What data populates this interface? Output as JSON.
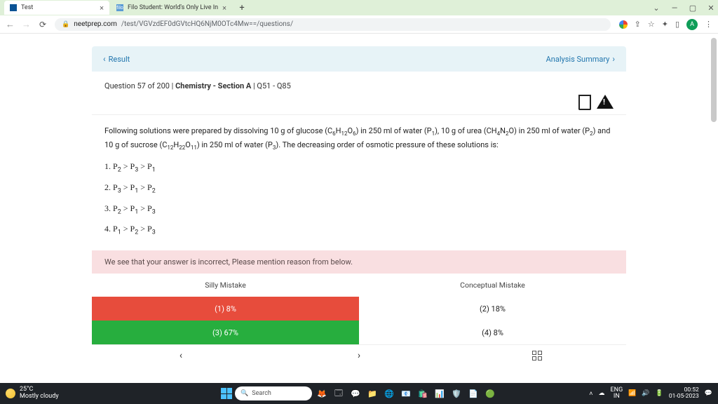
{
  "browser": {
    "tabs": [
      {
        "title": "Test",
        "active": true
      },
      {
        "title": "Filo Student: World's Only Live In",
        "active": false
      }
    ],
    "url_domain": "neetprep.com",
    "url_path": "/test/VGVzdEF0dGVtcHQ6NjM0OTc4Mw==/questions/",
    "win_min": "—",
    "win_max": "▢",
    "win_close": "✕",
    "win_chev": "⌄",
    "avatar_letter": "A"
  },
  "header": {
    "result_label": "Result",
    "analysis_label": "Analysis Summary"
  },
  "question": {
    "meta_prefix": "Question 57 of 200 | ",
    "meta_bold": "Chemistry - Section A",
    "meta_suffix": " | Q51 - Q85",
    "text_html": "Following solutions were prepared by dissolving 10 g of glucose (C<sub>6</sub>H<sub>12</sub>O<sub>6</sub>) in 250 ml of water (P<sub>1</sub>), 10 g of urea (CH<sub>4</sub>N<sub>2</sub>O) in 250 ml of water (P<sub>2</sub>) and 10 g of sucrose (C<sub>12</sub>H<sub>22</sub>O<sub>11</sub>) in 250 ml of water (P<sub>3</sub>). The decreasing order of osmotic pressure of these solutions is:",
    "options": [
      "1. P<sub>2</sub> > P<sub>3</sub> > P<sub>1</sub>",
      "2. P<sub>3</sub> > P<sub>1</sub> > P<sub>2</sub>",
      "3. P<sub>2</sub> > P<sub>1</sub> > P<sub>3</sub>",
      "4. P<sub>1</sub> > P<sub>2</sub> > P<sub>3</sub>"
    ]
  },
  "feedback": {
    "incorrect_msg": "We see that your answer is incorrect, Please mention reason from below.",
    "silly_label": "Silly Mistake",
    "conceptual_label": "Conceptual Mistake"
  },
  "answers": {
    "a1": "(1)  8%",
    "a2": "(2)  18%",
    "a3": "(3)  67%",
    "a4": "(4)  8%",
    "colors": {
      "wrong": "#e74c3c",
      "correct": "#27ae3e"
    }
  },
  "taskbar": {
    "temp": "25°C",
    "cond": "Mostly cloudy",
    "search_placeholder": "Search",
    "lang1": "ENG",
    "lang2": "IN",
    "time": "00:52",
    "date": "01-05-2023"
  }
}
